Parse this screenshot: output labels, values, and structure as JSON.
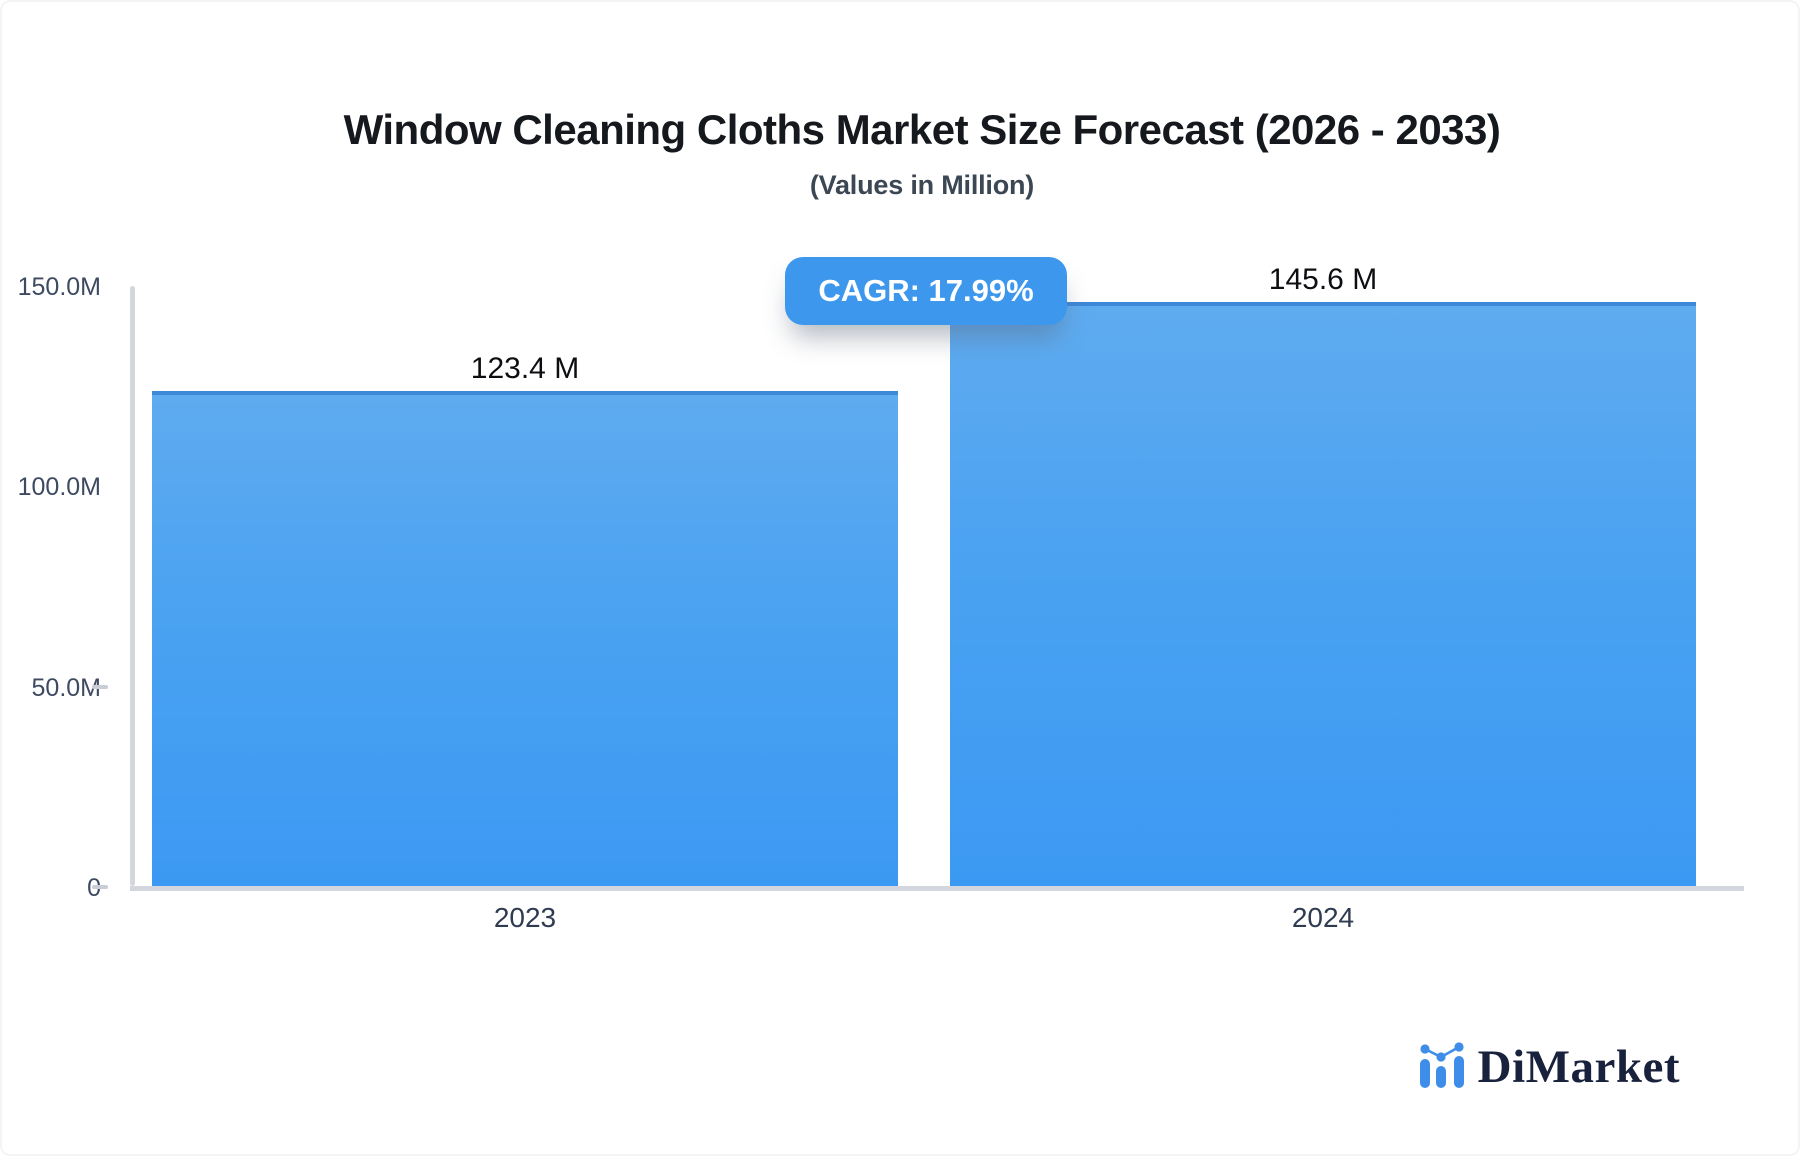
{
  "header": {
    "title": "Window Cleaning Cloths Market Size Forecast (2026 - 2033)",
    "subtitle": "(Values in Million)"
  },
  "cagr_badge": {
    "label": "CAGR: 17.99%"
  },
  "chart_data": {
    "type": "bar",
    "title": "Window Cleaning Cloths Market Size Forecast (2026 - 2033)",
    "subtitle": "(Values in Million)",
    "unit": "Million",
    "categories": [
      "2023",
      "2024"
    ],
    "values": [
      123.4,
      145.6
    ],
    "value_labels": [
      "123.4 M",
      "145.6 M"
    ],
    "cagr_percent": 17.99,
    "ylim": [
      0,
      150
    ],
    "y_ticks": [
      {
        "label": "150.0M",
        "value": 150,
        "dash": false
      },
      {
        "label": "100.0M",
        "value": 100,
        "dash": false
      },
      {
        "label": "50.0M",
        "value": 50,
        "dash": true
      },
      {
        "label": "0",
        "value": 0,
        "dash": true
      }
    ],
    "grid": "off",
    "legend": "none"
  },
  "colors": {
    "bar_gradient_top": "#5FABF0",
    "bar_gradient_mid": "#4AA2F1",
    "bar_gradient_bottom": "#3C99F3",
    "bar_top_border": "#3E88D8",
    "badge_bg": "#3D98ED",
    "badge_text": "#FFFFFF",
    "axis_line": "#D3D7DD",
    "tick_dash": "#C9CED6",
    "logo_blue": "#3E8EE9",
    "logo_navy": "#19223C"
  },
  "logo": {
    "text": "DiMarket",
    "icon": "bar-line-chart-icon"
  }
}
